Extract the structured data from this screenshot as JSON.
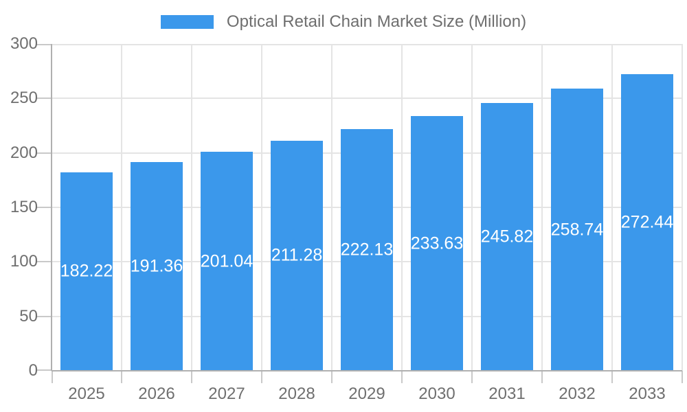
{
  "legend": {
    "label": "Optical Retail Chain Market Size (Million)"
  },
  "chart_data": {
    "type": "bar",
    "title": "Optical Retail Chain Market Size (Million)",
    "categories": [
      "2025",
      "2026",
      "2027",
      "2028",
      "2029",
      "2030",
      "2031",
      "2032",
      "2033"
    ],
    "values": [
      182.22,
      191.36,
      201.04,
      211.28,
      222.13,
      233.63,
      245.82,
      258.74,
      272.44
    ],
    "value_decimals": 2,
    "xlabel": "",
    "ylabel": "",
    "ylim": [
      0,
      300
    ],
    "yticks": [
      0,
      50,
      100,
      150,
      200,
      250,
      300
    ],
    "grid": true,
    "grid_vertical": true,
    "legend_position": "top-center",
    "bar_label_position": "inside-center",
    "colors": {
      "bar": "#3B98EB",
      "bar_label": "#FFFFFF",
      "grid": "#E4E4E4",
      "axis": "#B0B0B0",
      "tick": "#C9C9C9",
      "axis_label": "#6F6F6F",
      "legend_text": "#6E6E6E",
      "background": "#FFFFFF"
    }
  }
}
